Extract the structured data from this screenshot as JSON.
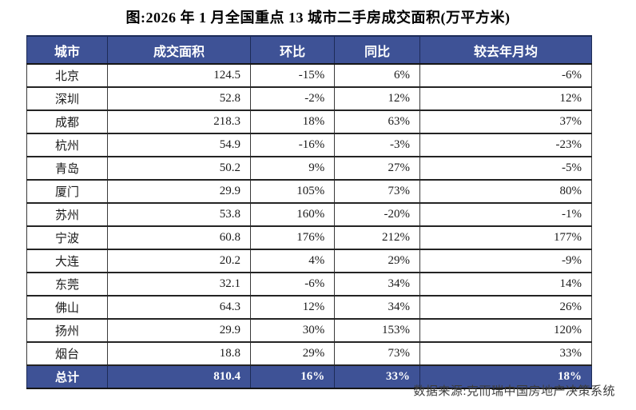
{
  "title": "图:2026 年 1 月全国重点 13 城市二手房成交面积(万平方米)",
  "source_note": "数据来源:克而瑞中国房地产决策系统",
  "colors": {
    "header_bg": "#3e5296",
    "header_text": "#ffffff",
    "body_text": "#1b1b1b",
    "border": "#242424"
  },
  "table": {
    "headers": [
      "城市",
      "成交面积",
      "环比",
      "同比",
      "较去年月均"
    ],
    "rows": [
      [
        "北京",
        "124.5",
        "-15%",
        "6%",
        "-6%"
      ],
      [
        "深圳",
        "52.8",
        "-2%",
        "12%",
        "12%"
      ],
      [
        "成都",
        "218.3",
        "18%",
        "63%",
        "37%"
      ],
      [
        "杭州",
        "54.9",
        "-16%",
        "-3%",
        "-23%"
      ],
      [
        "青岛",
        "50.2",
        "9%",
        "27%",
        "-5%"
      ],
      [
        "厦门",
        "29.9",
        "105%",
        "73%",
        "80%"
      ],
      [
        "苏州",
        "53.8",
        "160%",
        "-20%",
        "-1%"
      ],
      [
        "宁波",
        "60.8",
        "176%",
        "212%",
        "177%"
      ],
      [
        "大连",
        "20.2",
        "4%",
        "29%",
        "-9%"
      ],
      [
        "东莞",
        "32.1",
        "-6%",
        "34%",
        "14%"
      ],
      [
        "佛山",
        "64.3",
        "12%",
        "34%",
        "26%"
      ],
      [
        "扬州",
        "29.9",
        "30%",
        "153%",
        "120%"
      ],
      [
        "烟台",
        "18.8",
        "29%",
        "73%",
        "33%"
      ]
    ],
    "total": [
      "总计",
      "810.4",
      "16%",
      "33%",
      "18%"
    ]
  },
  "chart_data": {
    "type": "table",
    "title": "图:2026年1月全国重点13城市二手房成交面积(万平方米)",
    "unit": "万平方米",
    "columns": [
      "城市",
      "成交面积",
      "环比",
      "同比",
      "较去年月均"
    ],
    "rows": [
      {
        "city": "北京",
        "area": 124.5,
        "mom_pct": -15,
        "yoy_pct": 6,
        "vs_last_year_monthly_avg_pct": -6
      },
      {
        "city": "深圳",
        "area": 52.8,
        "mom_pct": -2,
        "yoy_pct": 12,
        "vs_last_year_monthly_avg_pct": 12
      },
      {
        "city": "成都",
        "area": 218.3,
        "mom_pct": 18,
        "yoy_pct": 63,
        "vs_last_year_monthly_avg_pct": 37
      },
      {
        "city": "杭州",
        "area": 54.9,
        "mom_pct": -16,
        "yoy_pct": -3,
        "vs_last_year_monthly_avg_pct": -23
      },
      {
        "city": "青岛",
        "area": 50.2,
        "mom_pct": 9,
        "yoy_pct": 27,
        "vs_last_year_monthly_avg_pct": -5
      },
      {
        "city": "厦门",
        "area": 29.9,
        "mom_pct": 105,
        "yoy_pct": 73,
        "vs_last_year_monthly_avg_pct": 80
      },
      {
        "city": "苏州",
        "area": 53.8,
        "mom_pct": 160,
        "yoy_pct": -20,
        "vs_last_year_monthly_avg_pct": -1
      },
      {
        "city": "宁波",
        "area": 60.8,
        "mom_pct": 176,
        "yoy_pct": 212,
        "vs_last_year_monthly_avg_pct": 177
      },
      {
        "city": "大连",
        "area": 20.2,
        "mom_pct": 4,
        "yoy_pct": 29,
        "vs_last_year_monthly_avg_pct": -9
      },
      {
        "city": "东莞",
        "area": 32.1,
        "mom_pct": -6,
        "yoy_pct": 34,
        "vs_last_year_monthly_avg_pct": 14
      },
      {
        "city": "佛山",
        "area": 64.3,
        "mom_pct": 12,
        "yoy_pct": 34,
        "vs_last_year_monthly_avg_pct": 26
      },
      {
        "city": "扬州",
        "area": 29.9,
        "mom_pct": 30,
        "yoy_pct": 153,
        "vs_last_year_monthly_avg_pct": 120
      },
      {
        "city": "烟台",
        "area": 18.8,
        "mom_pct": 29,
        "yoy_pct": 73,
        "vs_last_year_monthly_avg_pct": 33
      }
    ],
    "total": {
      "city": "总计",
      "area": 810.4,
      "mom_pct": 16,
      "yoy_pct": 33,
      "vs_last_year_monthly_avg_pct": 18
    },
    "source": "数据来源:克而瑞中国房地产决策系统"
  }
}
